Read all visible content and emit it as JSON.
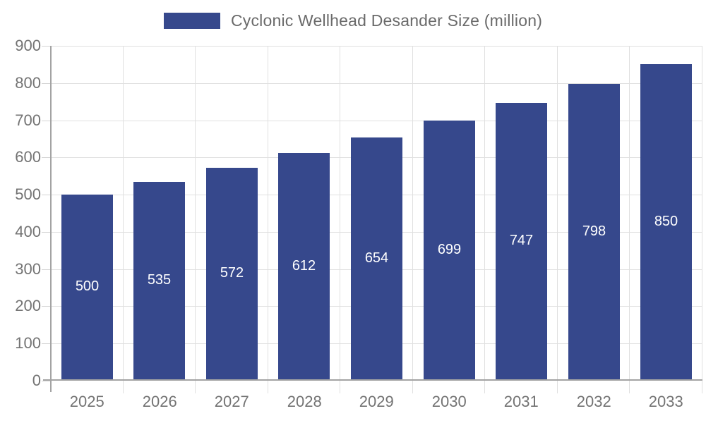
{
  "chart_data": {
    "type": "bar",
    "title": "Cyclonic Wellhead Desander Size (million)",
    "legend": [
      "Cyclonic Wellhead Desander Size (million)"
    ],
    "legend_position": "top-center",
    "categories": [
      "2025",
      "2026",
      "2027",
      "2028",
      "2029",
      "2030",
      "2031",
      "2032",
      "2033"
    ],
    "values": [
      500,
      535,
      572,
      612,
      654,
      699,
      747,
      798,
      850
    ],
    "xlabel": "",
    "ylabel": "",
    "ylim": [
      0,
      900
    ],
    "y_ticks": [
      0,
      100,
      200,
      300,
      400,
      500,
      600,
      700,
      800,
      900
    ],
    "grid": "on",
    "value_labels": "inside-center"
  },
  "colors": {
    "bar": "#36488C",
    "grid": "#e0e0e0",
    "axis": "#a3a3a3",
    "tick_label": "#737373",
    "legend_text": "#6a6a6a",
    "value_label": "#ffffff"
  }
}
